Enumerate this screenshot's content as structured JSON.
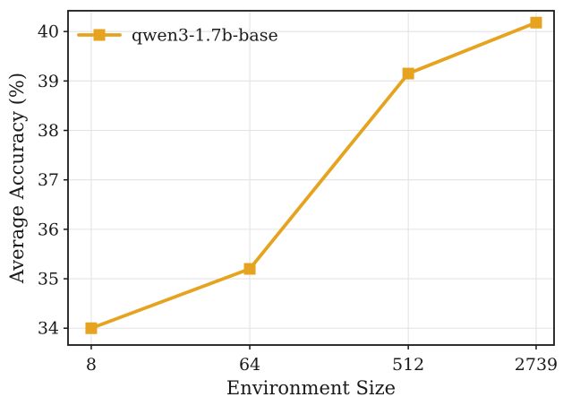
{
  "figure": {
    "background": "#ffffff"
  },
  "chart_data": {
    "type": "line",
    "title": "",
    "xlabel": "Environment Size",
    "ylabel": "Average Accuracy (%)",
    "x_scale": "log",
    "x": [
      8,
      64,
      512,
      2739
    ],
    "xtick_labels": [
      "8",
      "64",
      "512",
      "2739"
    ],
    "yticks": [
      34,
      35,
      36,
      37,
      38,
      39,
      40
    ],
    "ytick_labels": [
      "34",
      "35",
      "36",
      "37",
      "38",
      "39",
      "40"
    ],
    "xlim": [
      5.9,
      3465
    ],
    "ylim": [
      33.66,
      40.42
    ],
    "grid": true,
    "legend_position": "upper-left",
    "series": [
      {
        "name": "qwen3-1.7b-base",
        "values": [
          34.0,
          35.2,
          39.15,
          40.18
        ],
        "color": "#E5A320",
        "marker": "square",
        "marker_size": 13,
        "line_width": 3.8
      }
    ]
  },
  "style": {
    "grid_color": "#E3E3E3",
    "spine_color": "#1A1A1A",
    "text_color": "#1A1A1A",
    "tick_font_size": 19,
    "label_font_size": 21,
    "legend_font_size": 19
  }
}
